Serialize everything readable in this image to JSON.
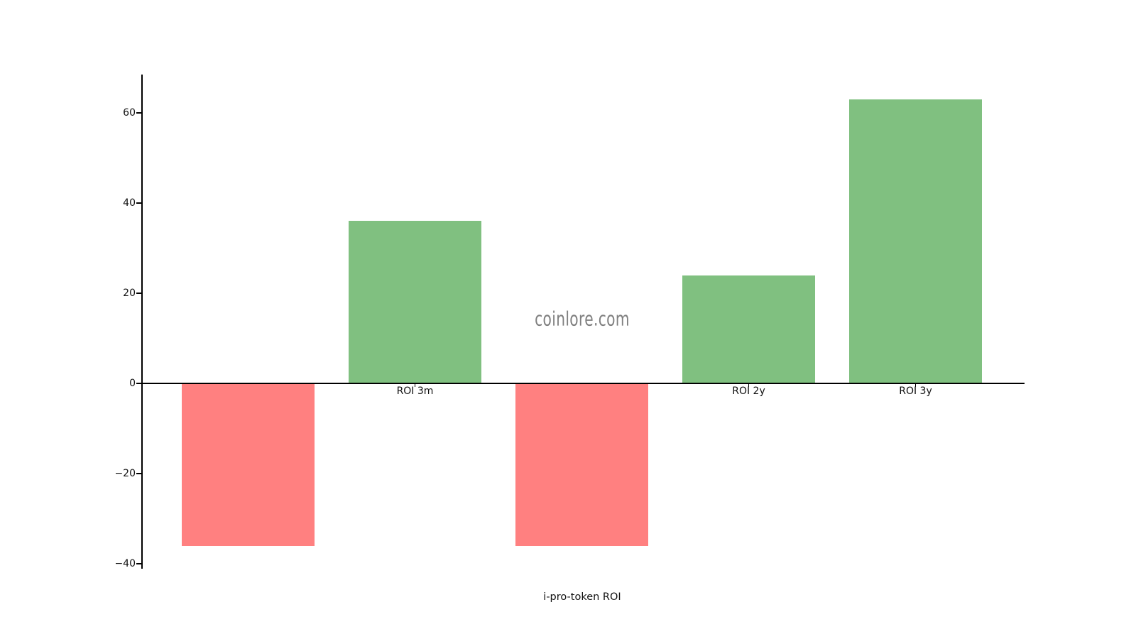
{
  "chart_data": {
    "type": "bar",
    "xlabel": "i-pro-token ROI",
    "ylabel": "",
    "watermark": "coinlore.com",
    "categories": [
      "",
      "ROI 3m",
      "",
      "ROI 2y",
      "ROI 3y"
    ],
    "values": [
      -36,
      36,
      -36,
      24,
      63
    ],
    "yticks": [
      {
        "v": 60,
        "label": "60"
      },
      {
        "v": 40,
        "label": "40"
      },
      {
        "v": 20,
        "label": "20"
      },
      {
        "v": 0,
        "label": "0"
      },
      {
        "v": -20,
        "label": "−20"
      },
      {
        "v": -40,
        "label": "−40"
      }
    ],
    "ylim": [
      -41,
      68.5
    ],
    "grid": false,
    "legend": false,
    "colors": {
      "positive": "#80c080",
      "negative": "#ff8080",
      "axis": "#000000",
      "tick_label": "#111111",
      "watermark": "#7f7f7f"
    }
  }
}
